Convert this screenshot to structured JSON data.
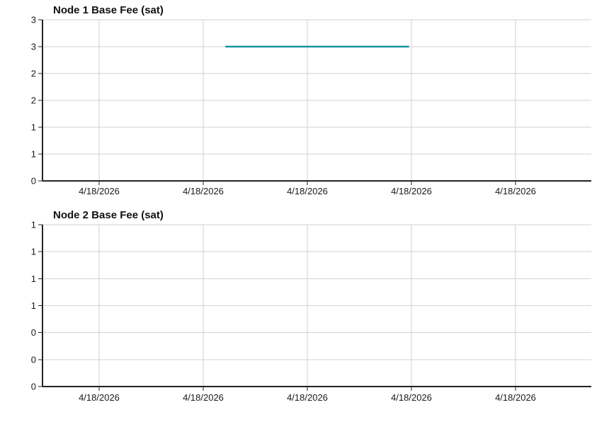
{
  "page": {
    "background_color": "#ffffff"
  },
  "colors": {
    "grid": "#d2d2d2",
    "axis": "#222222",
    "tick_text": "#1a1a1a",
    "series_teal": "#16949f"
  },
  "chart_data": [
    {
      "type": "line",
      "title": "Node 1 Base Fee (sat)",
      "x_tick_labels": [
        "4/18/2026",
        "4/18/2026",
        "4/18/2026",
        "4/18/2026",
        "4/18/2026"
      ],
      "y_tick_labels_top_to_bottom": [
        "3",
        "3",
        "2",
        "2",
        "1",
        "1",
        "0"
      ],
      "ylim_displayed": [
        0,
        3
      ],
      "grid": true,
      "legend": false,
      "series": [
        {
          "name": "node-1-base-fee",
          "color": "#16949f",
          "constant_value": 3,
          "x_start_frac": 0.333,
          "x_end_frac": 0.668,
          "y_frac_from_top": 0.1667
        }
      ]
    },
    {
      "type": "line",
      "title": "Node 2 Base Fee (sat)",
      "x_tick_labels": [
        "4/18/2026",
        "4/18/2026",
        "4/18/2026",
        "4/18/2026",
        "4/18/2026"
      ],
      "y_tick_labels_top_to_bottom": [
        "1",
        "1",
        "1",
        "1",
        "0",
        "0",
        "0"
      ],
      "ylim_displayed": [
        0,
        1
      ],
      "grid": true,
      "legend": false,
      "series": []
    }
  ]
}
